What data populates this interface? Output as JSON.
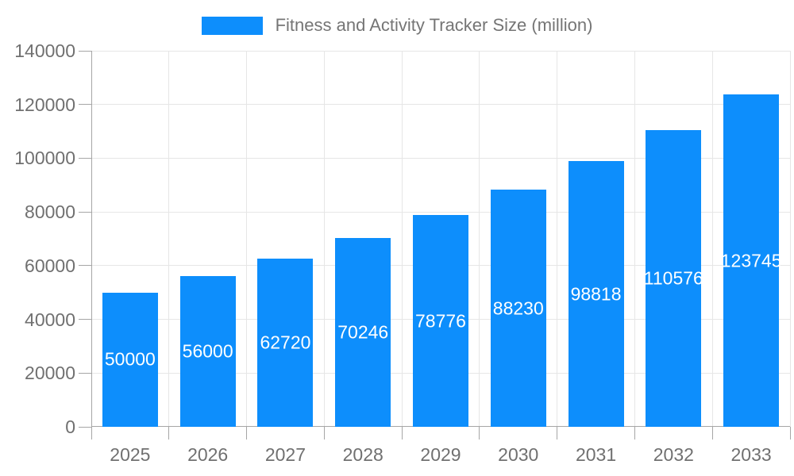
{
  "legend": {
    "label": "Fitness and Activity Tracker Size (million)"
  },
  "colors": {
    "bar": "#0D8EFC",
    "bar_label": "#FFFFFF",
    "axis_text": "#707070",
    "title_text": "#757575",
    "grid_line": "#E6E6E6",
    "axis_line": "#A6A6A6"
  },
  "chart_data": {
    "type": "bar",
    "title": "Fitness and Activity Tracker Size (million)",
    "categories": [
      "2025",
      "2026",
      "2027",
      "2028",
      "2029",
      "2030",
      "2031",
      "2032",
      "2033"
    ],
    "values": [
      50000,
      56000,
      62720,
      70246,
      78776,
      88230,
      98818,
      110576,
      123745
    ],
    "xlabel": "",
    "ylabel": "",
    "ylim": [
      0,
      140000
    ],
    "ytick_step": 20000,
    "yticks": [
      0,
      20000,
      40000,
      60000,
      80000,
      100000,
      120000,
      140000
    ],
    "grid": true,
    "legend_position": "top",
    "bar_value_labels": true
  }
}
